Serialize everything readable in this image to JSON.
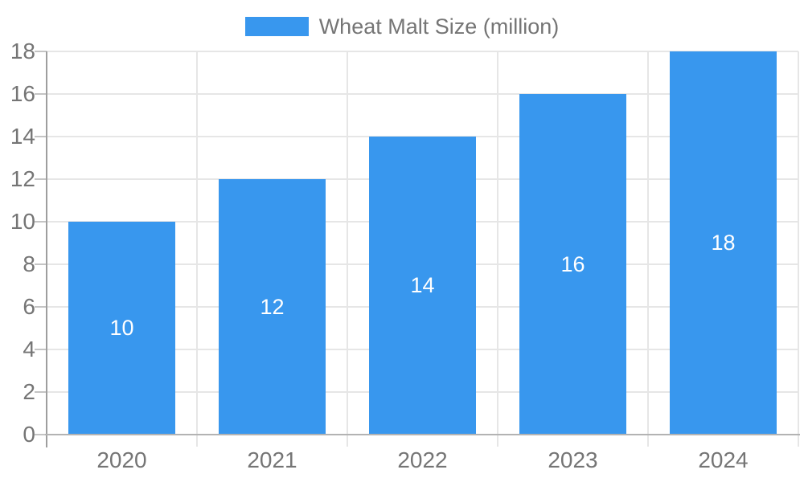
{
  "chart_data": {
    "type": "bar",
    "title": "Wheat Malt Size (million)",
    "series_name": "Wheat Malt Size (million)",
    "categories": [
      "2020",
      "2021",
      "2022",
      "2023",
      "2024"
    ],
    "values": [
      10,
      12,
      14,
      16,
      18
    ],
    "bar_value_labels": [
      "10",
      "12",
      "14",
      "16",
      "18"
    ],
    "xlabel": "",
    "ylabel": "",
    "ylim": [
      0,
      18
    ],
    "yticks": [
      0,
      2,
      4,
      6,
      8,
      10,
      12,
      14,
      16,
      18
    ],
    "legend_position": "top-center",
    "grid": true,
    "colors": {
      "bar": "#3897EE",
      "label_text": "#757575",
      "bar_label_text": "#FFFFFF",
      "gridline": "#E6E6E6",
      "tick": "#C4C4C4",
      "axis_line": "#9E9E9E",
      "baseline": "#B3B3B3",
      "background": "#FFFFFF"
    }
  }
}
